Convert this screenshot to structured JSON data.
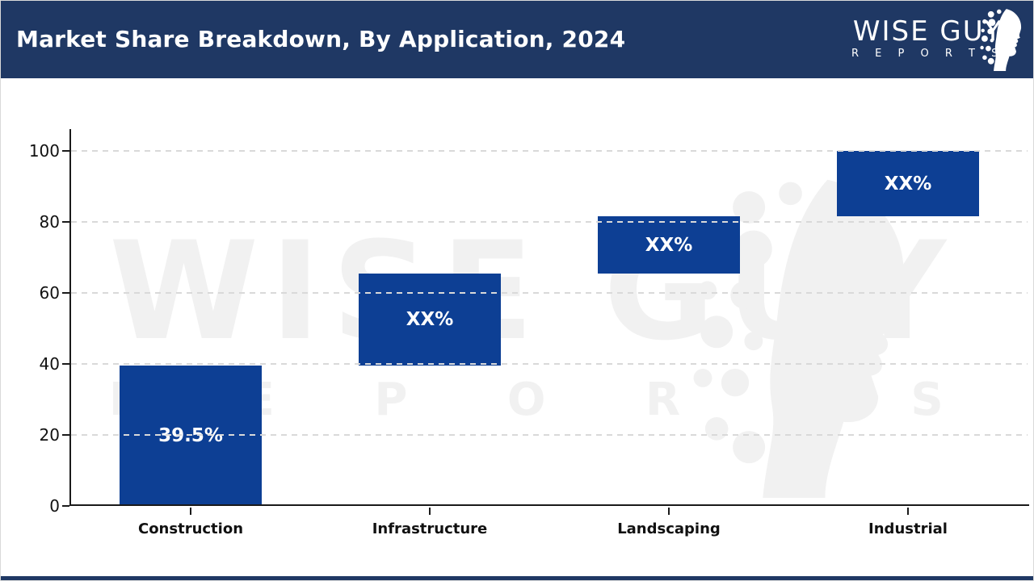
{
  "header": {
    "title": "Market Share Breakdown, By Application, 2024",
    "logo_main": "WISE GUY",
    "logo_sub": "R E P O R T S"
  },
  "watermark": {
    "main": "WISE GUY",
    "sub": "R E P O R T S"
  },
  "colors": {
    "header_bg": "#1f3864",
    "bar": "#0d3f94",
    "grid": "#d9d9d9",
    "axis": "#1a1a1a",
    "watermark": "#f1f1f1",
    "value_label": "#ffffff"
  },
  "chart_data": {
    "type": "bar",
    "subtype": "waterfall",
    "title": "Market Share Breakdown, By Application, 2024",
    "categories": [
      "Construction",
      "Infrastructure",
      "Landscaping",
      "Industrial"
    ],
    "segments": [
      {
        "category": "Construction",
        "start": 0,
        "end": 39.5,
        "label": "39.5%"
      },
      {
        "category": "Infrastructure",
        "start": 39.5,
        "end": 65.5,
        "label": "XX%"
      },
      {
        "category": "Landscaping",
        "start": 65.5,
        "end": 81.5,
        "label": "XX%"
      },
      {
        "category": "Industrial",
        "start": 81.5,
        "end": 100,
        "label": "XX%"
      }
    ],
    "xlabel": "",
    "ylabel": "",
    "ylim": [
      0,
      100
    ],
    "yticks": [
      0,
      20,
      40,
      60,
      80,
      100
    ],
    "grid": "horizontal dashed",
    "legend": "none"
  }
}
